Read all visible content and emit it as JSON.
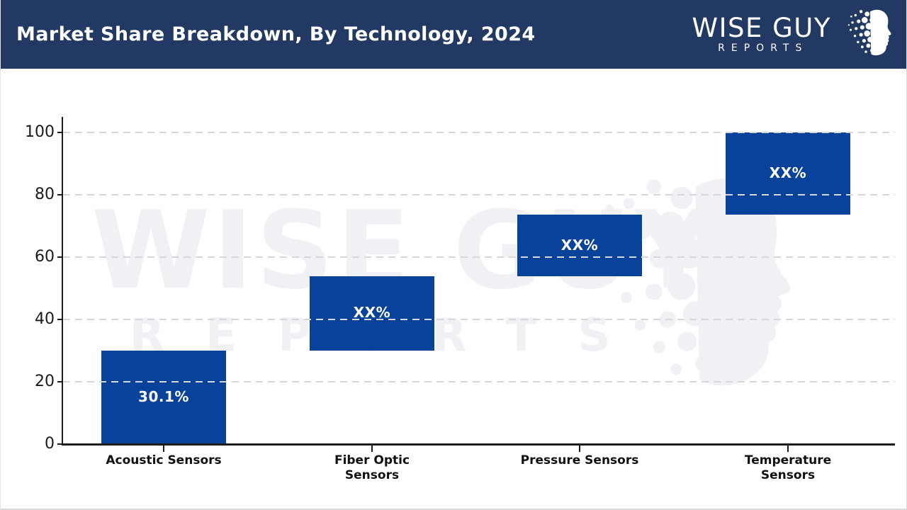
{
  "header": {
    "title": "Market Share Breakdown, By Technology, 2024",
    "bg_color": "#223a63",
    "logo": {
      "brand": "WISE GUY",
      "sub": "REPORTS"
    }
  },
  "watermark": {
    "brand": "WISE GUY",
    "sub": "REPORTS"
  },
  "chart_data": {
    "type": "bar",
    "subtype": "waterfall",
    "title": "Market Share Breakdown, By Technology, 2024",
    "categories": [
      "Acoustic Sensors",
      "Fiber Optic Sensors",
      "Pressure Sensors",
      "Temperature Sensors"
    ],
    "segments": [
      {
        "category": "Acoustic Sensors",
        "start": 0,
        "end": 30.1,
        "label": "30.1%",
        "masked": false
      },
      {
        "category": "Fiber Optic Sensors",
        "start": 30.1,
        "end": 53.9,
        "label": "XX%",
        "masked": true
      },
      {
        "category": "Pressure Sensors",
        "start": 53.9,
        "end": 73.6,
        "label": "XX%",
        "masked": true
      },
      {
        "category": "Temperature Sensors",
        "start": 73.6,
        "end": 100,
        "label": "XX%",
        "masked": true
      }
    ],
    "xlabel": "",
    "ylabel": "",
    "ylim": [
      0,
      100
    ],
    "yticks": [
      0,
      20,
      40,
      60,
      80,
      100
    ],
    "grid": true,
    "grid_style": "dashed",
    "legend": false,
    "bar_color": "#08429b",
    "bar_label_color": "#ffffff",
    "axis_color": "#1c1c1c"
  }
}
